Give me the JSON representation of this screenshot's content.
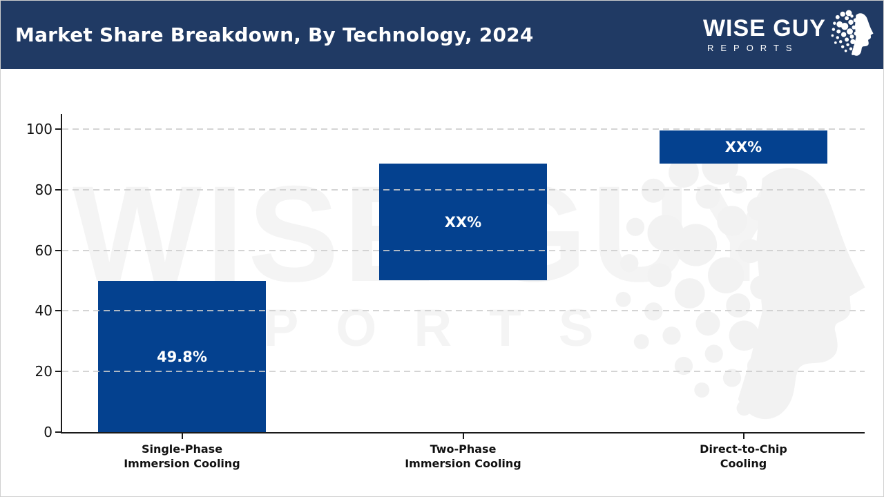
{
  "header": {
    "title": "Market Share Breakdown, By Technology, 2024",
    "logo": {
      "line1": "WISE GUY",
      "line2": "REPORTS"
    }
  },
  "watermark": {
    "line1": "WISE GUY",
    "line2": "REPORTS"
  },
  "chart_data": {
    "type": "bar",
    "subtype": "floating-waterfall-segments",
    "title": "Market Share Breakdown, By Technology, 2024",
    "categories": [
      [
        "Single-Phase",
        "Immersion Cooling"
      ],
      [
        "Two-Phase",
        "Immersion Cooling"
      ],
      [
        "Direct-to-Chip",
        "Cooling"
      ]
    ],
    "bars": [
      {
        "label": "49.8%",
        "start": 0,
        "end": 49.8
      },
      {
        "label": "XX%",
        "start": 50.0,
        "end": 88.7
      },
      {
        "label": "XX%",
        "start": 88.7,
        "end": 99.6
      }
    ],
    "yticks": [
      0,
      20,
      40,
      60,
      80,
      100
    ],
    "ylim": [
      0,
      105
    ],
    "xlabel": "",
    "ylabel": "",
    "legend": "none",
    "grid": "horizontal-dashed-over-bars",
    "colors": {
      "bar": "#04418f",
      "bar_label": "#ffffff",
      "axis": "#1a1a1a",
      "gridline": "#d9d9d9",
      "header_bg": "#203a64",
      "watermark": "#f4f4f4"
    }
  }
}
